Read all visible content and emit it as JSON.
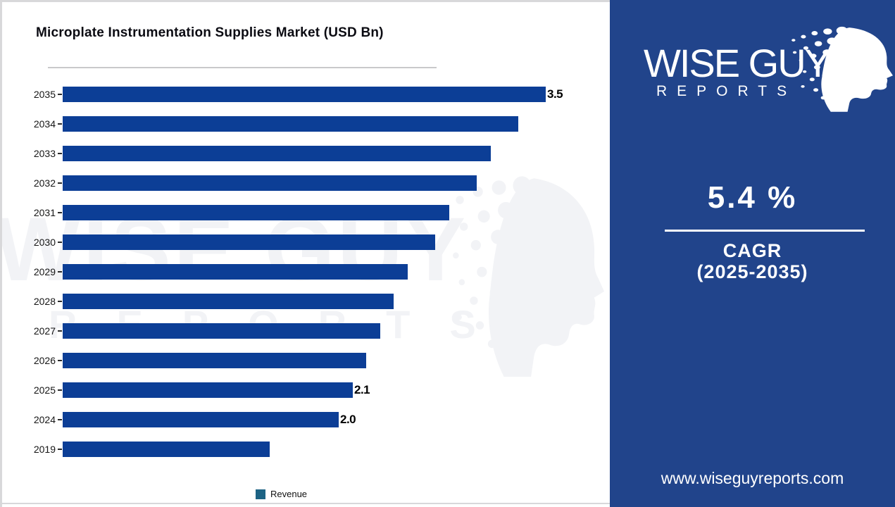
{
  "colors": {
    "bar": "#0c3e96",
    "sidebar_bg": "#21448b",
    "legend_marker": "#1d6384"
  },
  "chart_data": {
    "type": "bar",
    "orientation": "horizontal",
    "title": "Microplate Instrumentation Supplies Market (USD Bn)",
    "xlabel": "",
    "ylabel": "",
    "xlim": [
      0,
      3.6
    ],
    "grid": false,
    "legend": {
      "label": "Revenue",
      "position": "bottom"
    },
    "categories": [
      "2035",
      "2034",
      "2033",
      "2032",
      "2031",
      "2030",
      "2029",
      "2028",
      "2027",
      "2026",
      "2025",
      "2024",
      "2019"
    ],
    "series": [
      {
        "name": "Revenue",
        "values": [
          3.5,
          3.3,
          3.1,
          3.0,
          2.8,
          2.7,
          2.5,
          2.4,
          2.3,
          2.2,
          2.1,
          2.0,
          1.5
        ]
      }
    ],
    "value_labels": {
      "2035": "3.5",
      "2025": "2.1",
      "2024": "2.0"
    }
  },
  "sidebar": {
    "logo_text_primary": "WISE GUY",
    "logo_text_secondary": "REPORTS",
    "cagr_value": "5.4 %",
    "cagr_label_line1": "CAGR",
    "cagr_label_line2": "(2025-2035)",
    "website": "www.wiseguyreports.com"
  },
  "watermark": {
    "line1": "WISE GUY",
    "line2": "REPORTS"
  }
}
